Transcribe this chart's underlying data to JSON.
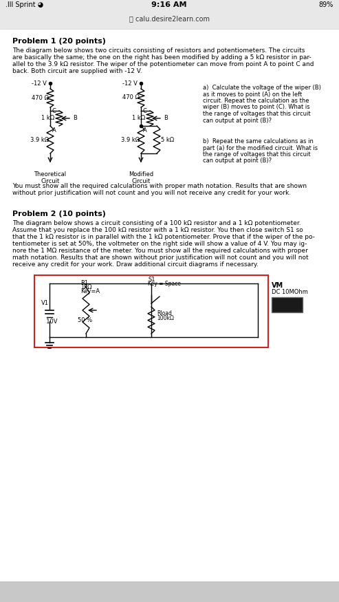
{
  "bg_color": "#e8e8e8",
  "status_bar_color": "#e5e5e5",
  "url_bar_color": "#ebebeb",
  "content_bg": "#ffffff",
  "bottom_bar_color": "#c8c8c8",
  "title": "9:16 AM",
  "subtitle": "⛳ calu.desire2learn.com",
  "status_left": ".lll Sprint ◕",
  "status_right": "89%",
  "problem1_title": "Problem 1 (20 points)",
  "problem1_body_lines": [
    "The diagram below shows two circuits consisting of resistors and potentiometers. The circuits",
    "are basically the same; the one on the right has been modified by adding a 5 kΩ resistor in par-",
    "allel to the 3.9 kΩ resistor. The wiper of the potentiometer can move from point A to point C and",
    "back. Both circuit are supplied with -12 V."
  ],
  "question_a_lines": [
    "a)  Calculate the voltage of the wiper (B)",
    "as it moves to point (A) on the left",
    "circuit. Repeat the calculation as the",
    "wiper (B) moves to point (C). What is",
    "the range of voltages that this circuit",
    "can output at point (B)?"
  ],
  "question_b_lines": [
    "b)  Repeat the same calculations as in",
    "part (a) for the modified circuit. What is",
    "the range of voltages that this circuit",
    "can output at point (B)?"
  ],
  "theoretical_label": "Theoretical\nCircuit",
  "modified_label": "Modified\nCircuit",
  "note_lines": [
    "You must show all the required calculations with proper math notation. Results that are shown",
    "without prior justification will not count and you will not receive any credit for your work."
  ],
  "problem2_title": "Problem 2 (10 points)",
  "problem2_body_lines": [
    "The diagram below shows a circuit consisting of a 100 kΩ resistor and a 1 kΩ potentiometer.",
    "Assume that you replace the 100 kΩ resistor with a 1 kΩ resistor. You then close switch S1 so",
    "that the 1 kΩ resistor is in parallel with the 1 kΩ potentiometer. Prove that if the wiper of the po-",
    "tentiometer is set at 50%, the voltmeter on the right side will show a value of 4 V. You may ig-",
    "nore the 1 MΩ resistance of the meter. You must show all the required calculations with proper",
    "math notation. Results that are shown without prior justification will not count and you will not",
    "receive any credit for your work. Draw additional circuit diagrams if necessary."
  ]
}
